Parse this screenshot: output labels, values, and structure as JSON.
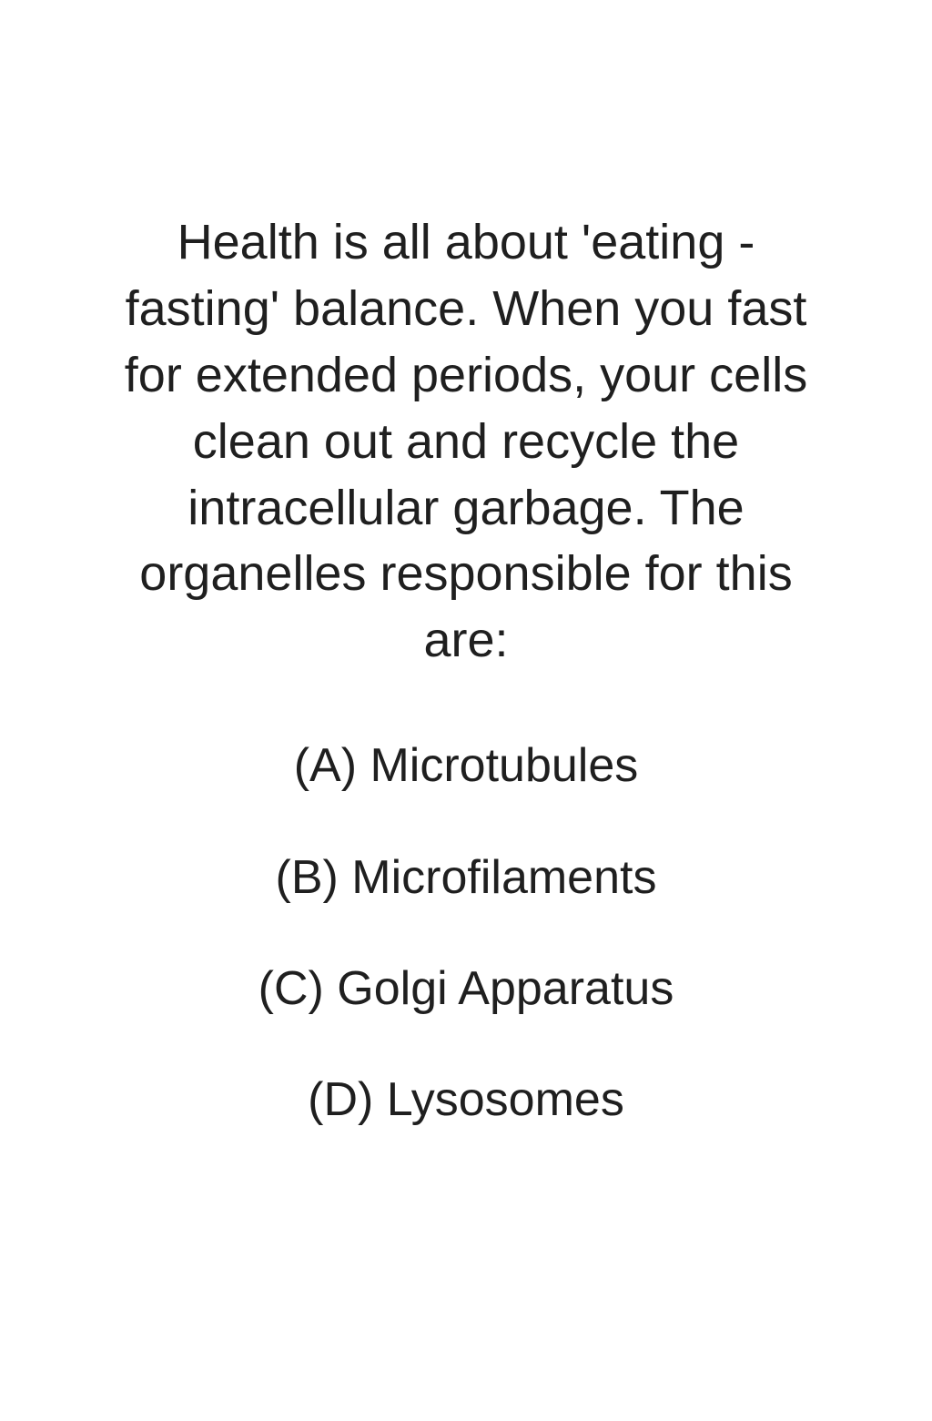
{
  "question": {
    "text": "Health is all about 'eating - fasting' balance. When you fast for extended periods, your cells clean out and recycle the intracellular garbage. The organelles responsible for this are:",
    "font_size_pt": 40,
    "color": "#1f1f1f",
    "align": "center"
  },
  "options": [
    {
      "label": "(A) Microtubules"
    },
    {
      "label": "(B) Microfilaments"
    },
    {
      "label": "(C) Golgi Apparatus"
    },
    {
      "label": "(D) Lysosomes"
    }
  ],
  "style": {
    "background_color": "#ffffff",
    "text_color": "#1f1f1f",
    "option_font_size_pt": 39,
    "line_height": 1.35
  }
}
